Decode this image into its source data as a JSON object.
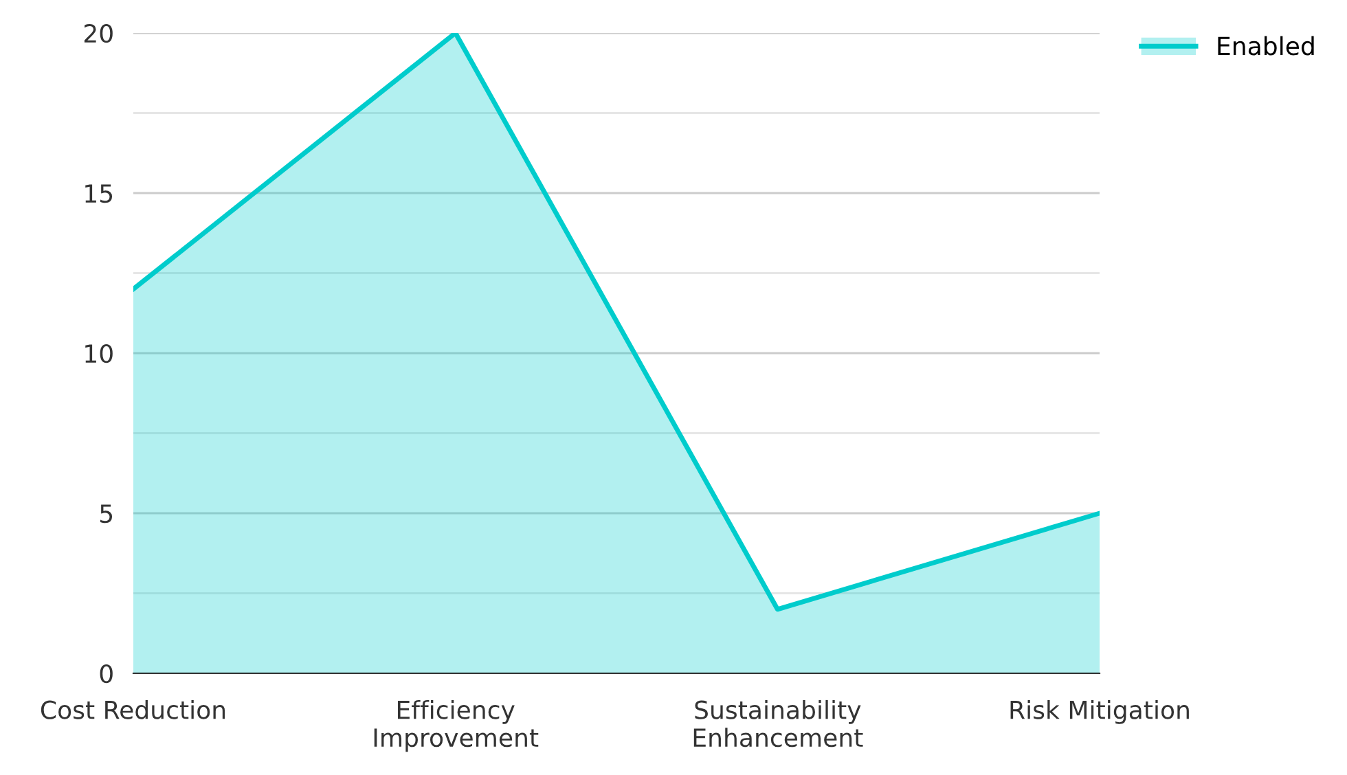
{
  "chart_data": {
    "type": "area",
    "categories": [
      "Cost Reduction",
      "Efficiency\nImprovement",
      "Sustainability\nEnhancement",
      "Risk Mitigation"
    ],
    "series": [
      {
        "name": "Enabled",
        "color": "#00cccc",
        "values": [
          12,
          20,
          2,
          5
        ]
      }
    ],
    "ylim": [
      0,
      20
    ],
    "yticks": [
      0,
      {
        "value": 2.5,
        "label": null
      },
      5,
      {
        "value": 7.5,
        "label": null
      },
      10,
      {
        "value": 12.5,
        "label": null
      },
      15,
      {
        "value": 17.5,
        "label": null
      },
      20
    ],
    "grid": "y",
    "legend": "top right",
    "marker": "none",
    "line_style": "solid"
  }
}
